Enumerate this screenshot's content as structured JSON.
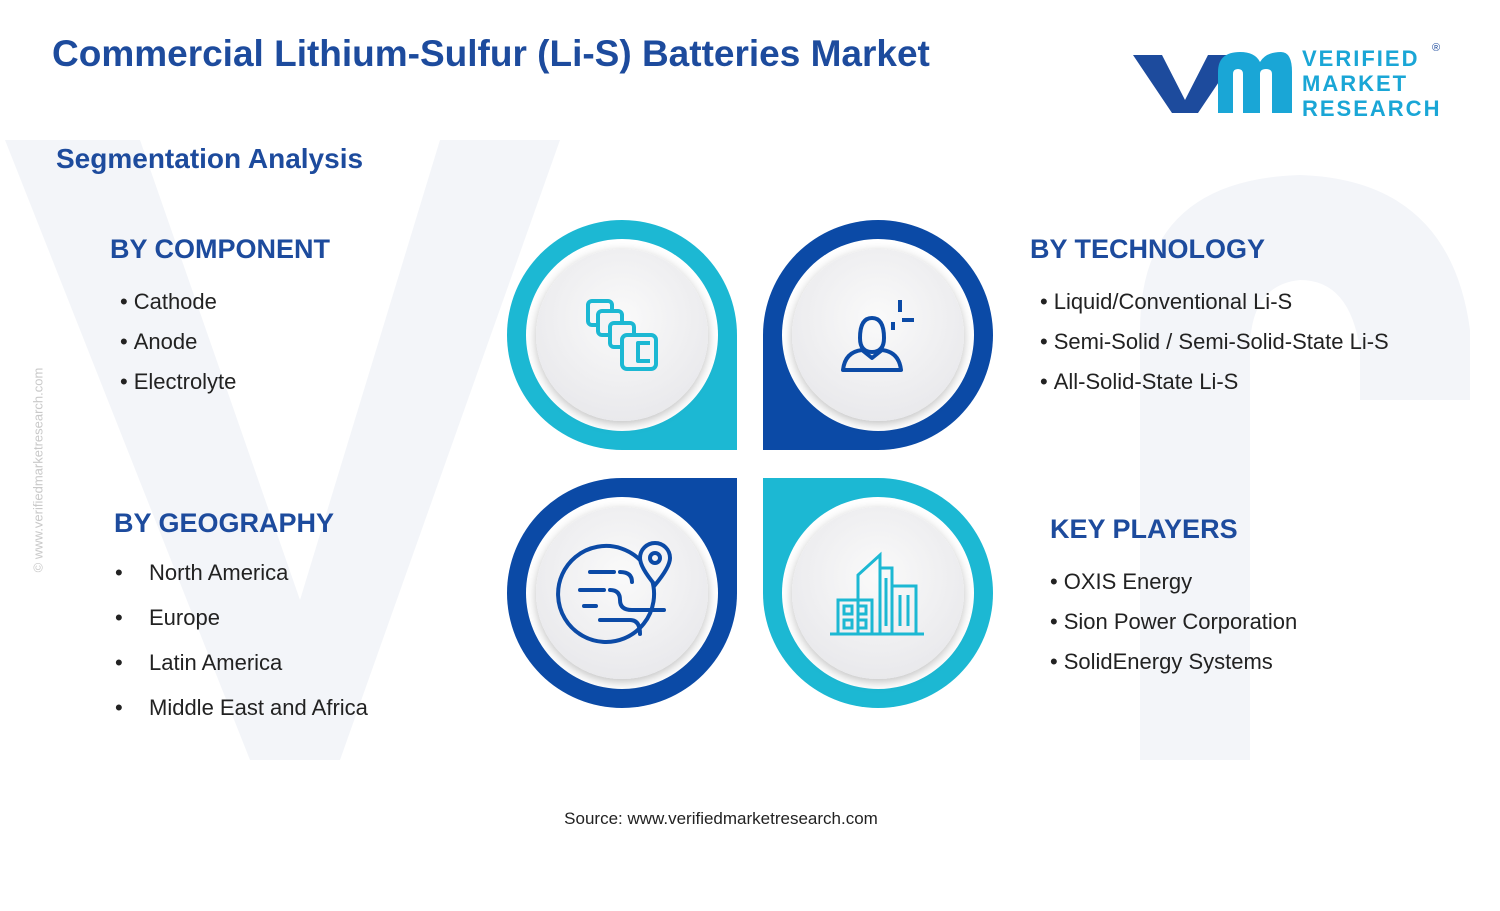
{
  "header": {
    "title": "Commercial Lithium-Sulfur (Li-S) Batteries Market",
    "subtitle": "Segmentation Analysis"
  },
  "logo": {
    "line1": "VERIFIED",
    "line2": "MARKET",
    "line3": "RESEARCH",
    "registered": "®"
  },
  "segments": [
    {
      "title": "BY COMPONENT",
      "items": [
        "Cathode",
        "Anode",
        "Electrolyte"
      ]
    },
    {
      "title": "BY TECHNOLOGY",
      "items": [
        "Liquid/Conventional Li-S",
        "Semi-Solid / Semi-Solid-State Li-S",
        "All-Solid-State Li-S"
      ]
    },
    {
      "title": "BY GEOGRAPHY",
      "items": [
        "North America",
        "Europe",
        "Latin America",
        "Middle East and Africa"
      ]
    },
    {
      "title": "KEY PLAYERS",
      "items": [
        "OXIS Energy",
        "Sion Power Corporation",
        "SolidEnergy Systems"
      ]
    }
  ],
  "footer": {
    "source": "Source: www.verifiedmarketresearch.com",
    "watermark": "© www.verifiedmarketresearch.com"
  }
}
